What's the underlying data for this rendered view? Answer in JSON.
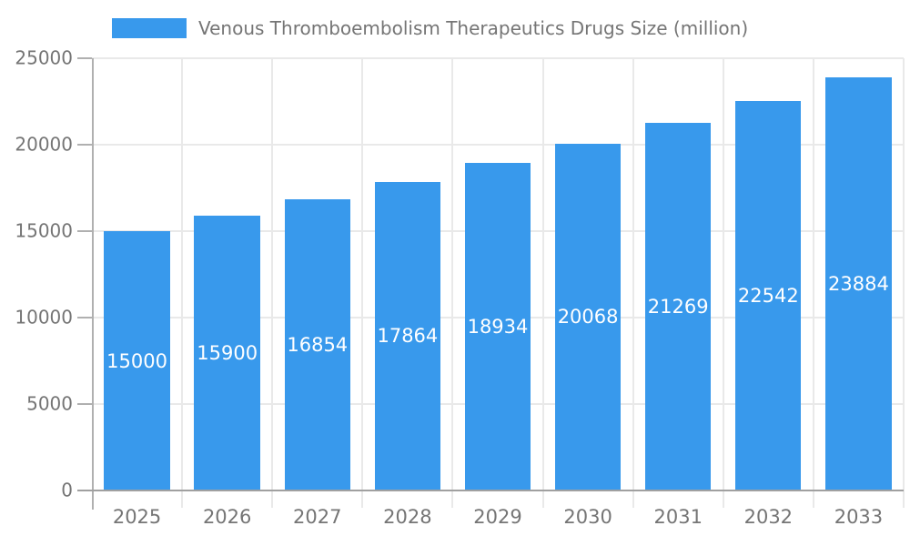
{
  "chart_data": {
    "type": "bar",
    "title": "Venous Thromboembolism Therapeutics Drugs Size (million)",
    "categories": [
      "2025",
      "2026",
      "2027",
      "2028",
      "2029",
      "2030",
      "2031",
      "2032",
      "2033"
    ],
    "values": [
      15000,
      15900,
      16854,
      17864,
      18934,
      20068,
      21269,
      22542,
      23884
    ],
    "value_labels": [
      "15000",
      "15900",
      "16854",
      "17864",
      "18934",
      "20068",
      "21269",
      "22542",
      "23884"
    ],
    "xlabel": "",
    "ylabel": "",
    "ylim": [
      0,
      25000
    ],
    "ystep": 5000,
    "yticks": [
      "25000",
      "20000",
      "15000",
      "10000",
      "5000",
      "0"
    ],
    "grid": true,
    "legend_position": "top",
    "colors": {
      "bar": "#3899EC",
      "grid": "#E9E9E9",
      "axis": "#B0B0B0",
      "baseline": "#A0A0A0",
      "tick_label": "#757575",
      "value_label": "#FFFFFF",
      "background": "#FFFFFF"
    }
  }
}
